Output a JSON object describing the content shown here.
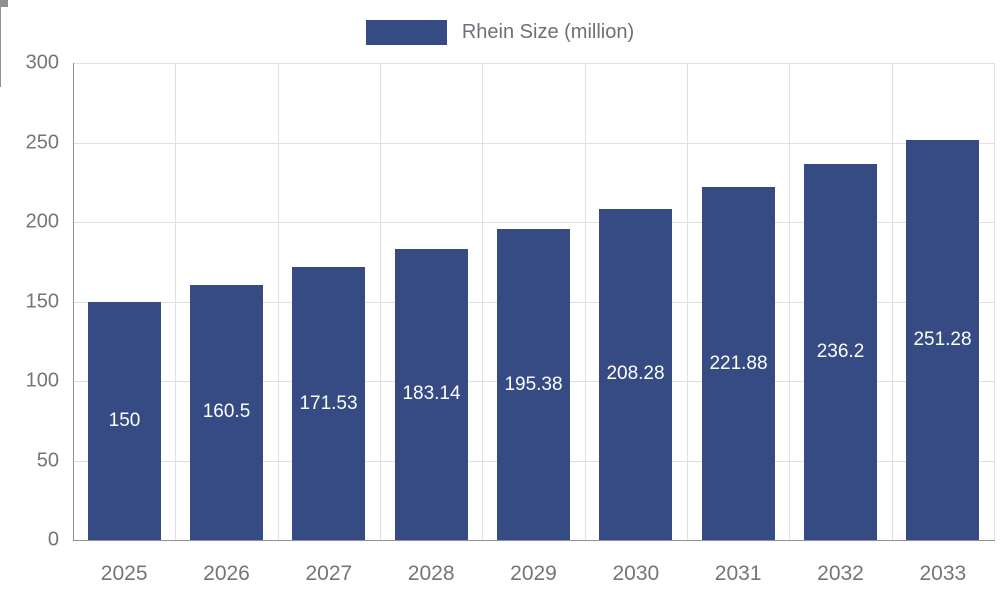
{
  "legend": {
    "label": "Rhein Size (million)"
  },
  "colors": {
    "bar": "#364a84",
    "axis": "#8f8f8f",
    "grid": "#e0e0e0",
    "axis_text": "#757575",
    "legend_text": "#6e7079",
    "value_text": "#ffffff",
    "background": "#ffffff"
  },
  "chart_data": {
    "type": "bar",
    "title": "Rhein Size (million)",
    "categories": [
      "2025",
      "2026",
      "2027",
      "2028",
      "2029",
      "2030",
      "2031",
      "2032",
      "2033"
    ],
    "values": [
      150,
      160.5,
      171.53,
      183.14,
      195.38,
      208.28,
      221.88,
      236.2,
      251.28
    ],
    "value_labels": [
      "150",
      "160.5",
      "171.53",
      "183.14",
      "195.38",
      "208.28",
      "221.88",
      "236.2",
      "251.28"
    ],
    "series_name": "Rhein Size (million)",
    "xlabel": "",
    "ylabel": "",
    "ylim": [
      0,
      300
    ],
    "ytick_interval": 50,
    "yticks": [
      0,
      50,
      100,
      150,
      200,
      250,
      300
    ],
    "grid": true,
    "legend_position": "top-center",
    "value_label_position": "inside-middle"
  }
}
